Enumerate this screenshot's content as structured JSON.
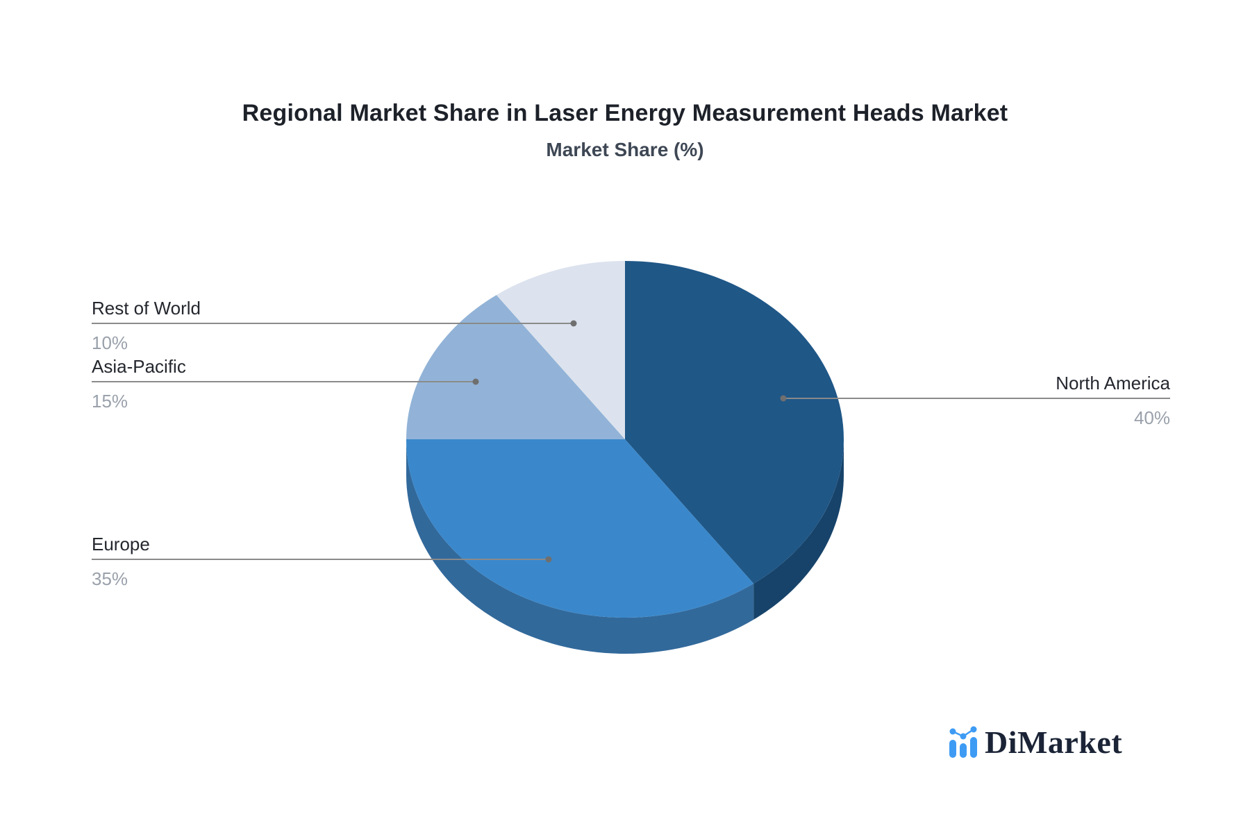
{
  "chart_data": {
    "type": "pie",
    "style": "3d",
    "title": "Regional Market Share in Laser Energy Measurement Heads Market",
    "subtitle": "Market Share (%)",
    "unit": "%",
    "start_angle_deg": 0,
    "direction": "clockwise",
    "legend_position": "none",
    "categories": [
      "North America",
      "Europe",
      "Asia-Pacific",
      "Rest of World"
    ],
    "values": [
      40,
      35,
      15,
      10
    ],
    "slices": [
      {
        "label": "North America",
        "value": 40,
        "pct_label": "40%",
        "color": "#1F5787",
        "side_color": "#17436A",
        "label_side": "right"
      },
      {
        "label": "Europe",
        "value": 35,
        "pct_label": "35%",
        "color": "#3A88CB",
        "side_color": "#32699B",
        "label_side": "left"
      },
      {
        "label": "Asia-Pacific",
        "value": 15,
        "pct_label": "15%",
        "color": "#92B3D7",
        "label_side": "left"
      },
      {
        "label": "Rest of World",
        "value": 10,
        "pct_label": "10%",
        "color": "#DCE3EE",
        "label_side": "left"
      }
    ],
    "leader_line_color": "#8a8a8a",
    "leader_dot_color": "#6f6f6f"
  },
  "logo": {
    "text": "DiMarket",
    "icon": "bar-chart-logo-icon",
    "icon_color": "#3E9BF4",
    "text_color": "#1b2436"
  }
}
